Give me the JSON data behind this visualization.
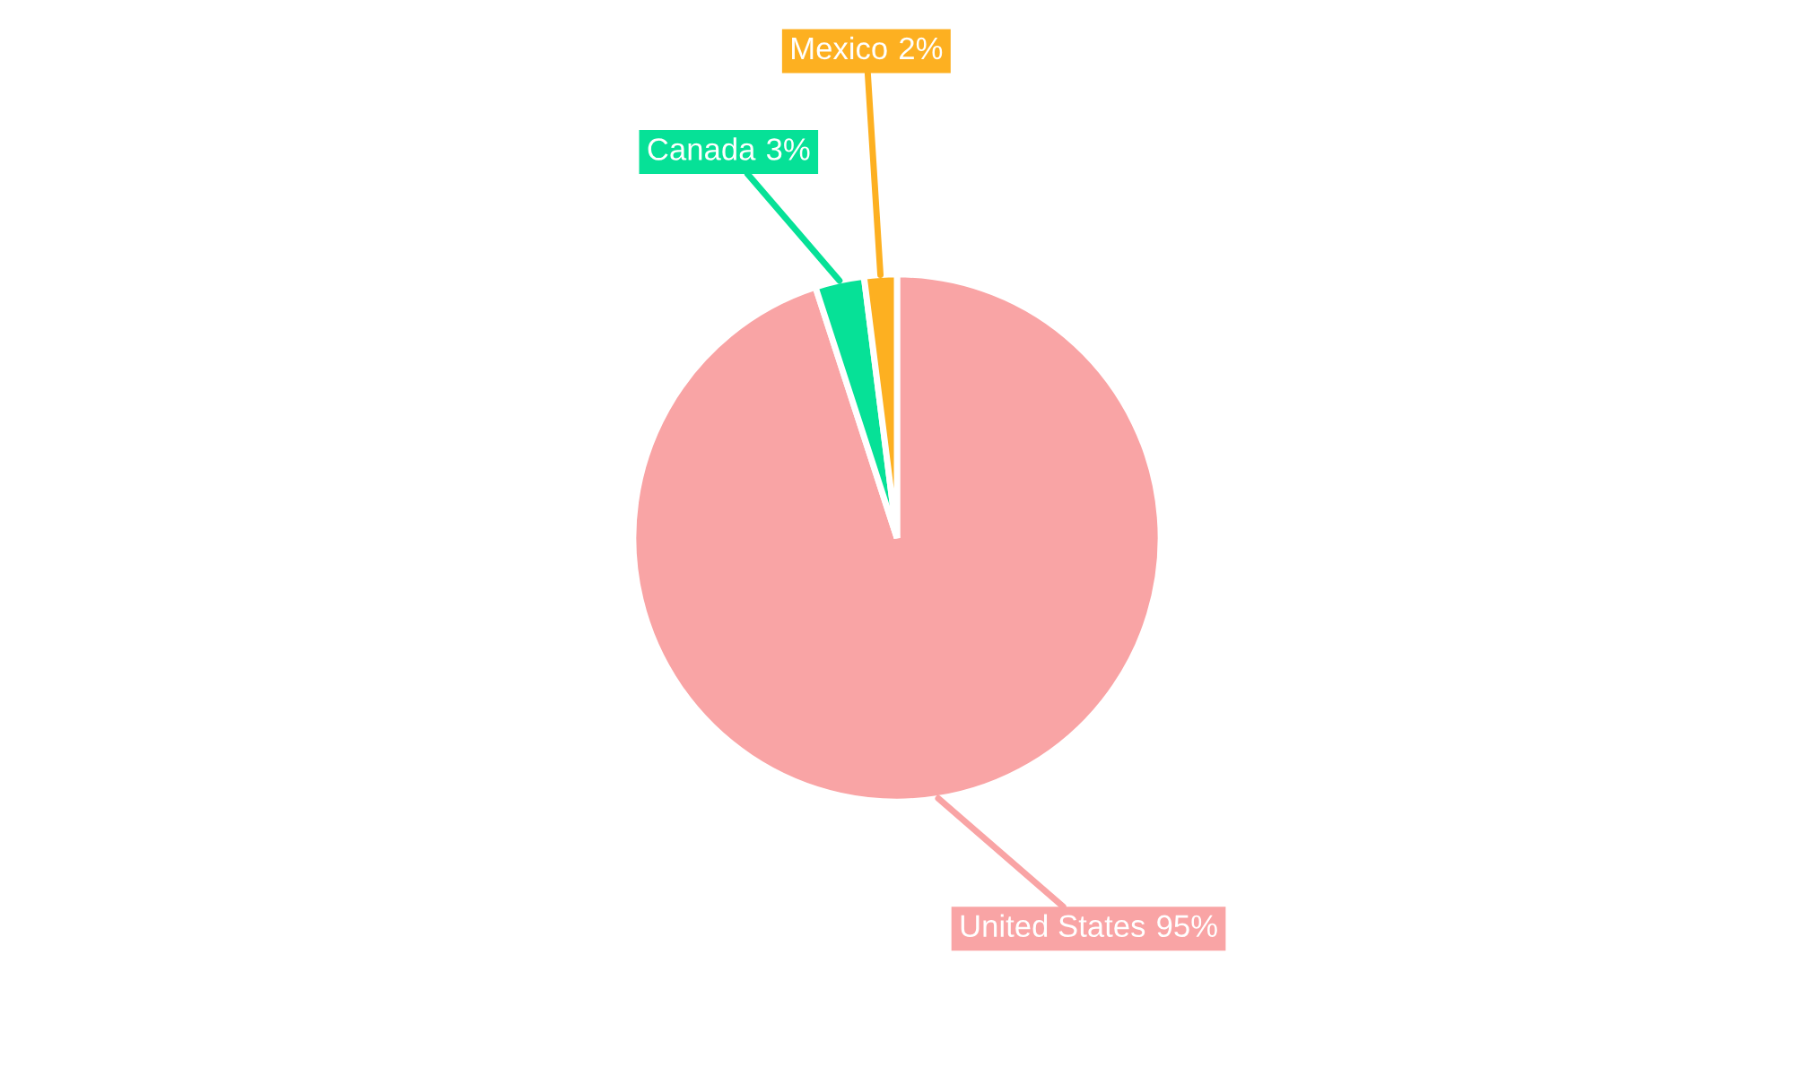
{
  "chart_data": {
    "type": "pie",
    "categories": [
      "United States",
      "Canada",
      "Mexico"
    ],
    "values": [
      95,
      3,
      2
    ],
    "colors": [
      "#f9a4a5",
      "#06e197",
      "#fdb021"
    ],
    "value_labels": [
      "95%",
      "3%",
      "2%"
    ]
  }
}
